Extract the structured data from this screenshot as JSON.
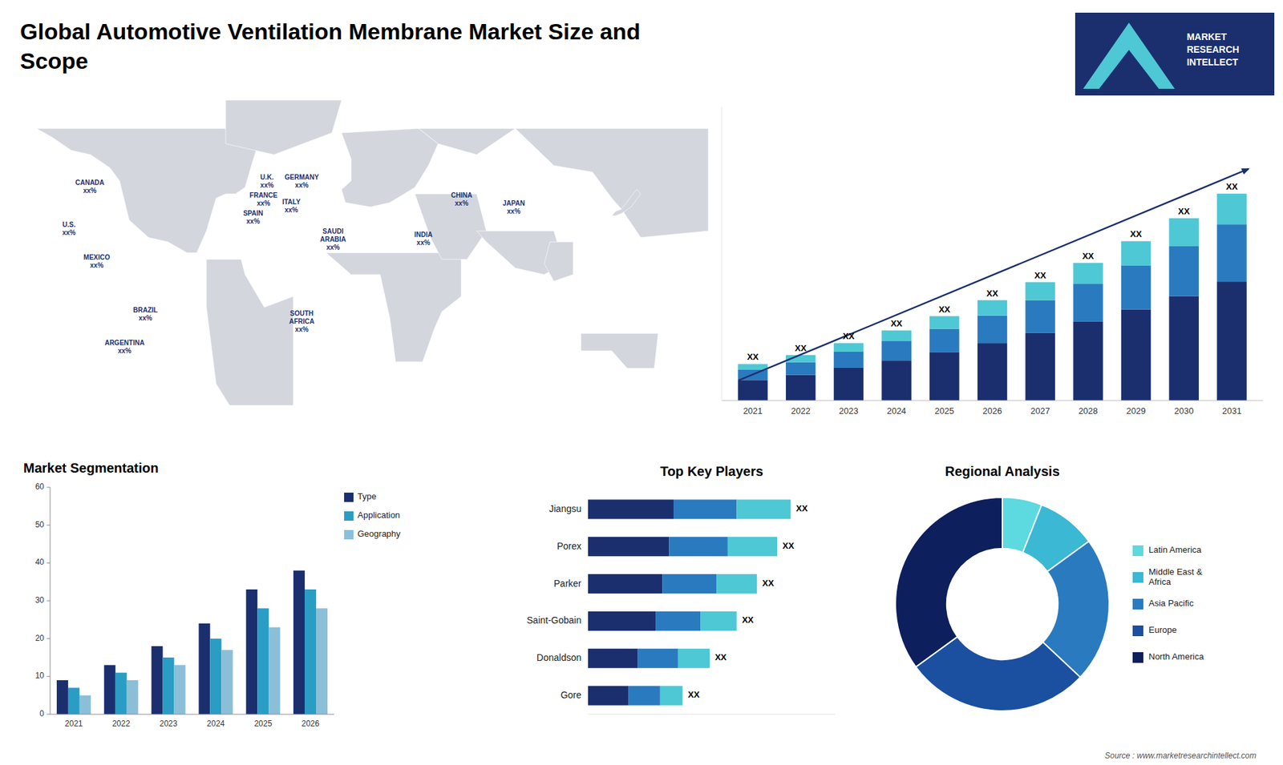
{
  "chart_data": [
    {
      "type": "map",
      "title": "Global Automotive Ventilation Membrane Market Size and\nScope",
      "annotations": [
        "CANADA\nxx%",
        "U.S.\nxx%",
        "MEXICO\nxx%",
        "BRAZIL\nxx%",
        "ARGENTINA\nxx%",
        "U.K.\nxx%",
        "FRANCE\nxx%",
        "SPAIN\nxx%",
        "GERMANY\nxx%",
        "ITALY\nxx%",
        "SAUDI\nARABIA\nxx%",
        "SOUTH\nAFRICA\nxx%",
        "CHINA\nxx%",
        "INDIA\nxx%",
        "JAPAN\nxx%",
        "MARKET\nRESEARCH\nINTELLECT",
        "Source : www.marketresearchintellect.com"
      ]
    },
    {
      "type": "bar",
      "stacked": true,
      "tick_labels": "x",
      "categories": [
        "2021",
        "2022",
        "2023",
        "2024",
        "2025",
        "2026",
        "2027",
        "2028",
        "2029",
        "2030",
        "2031"
      ],
      "series": [
        {
          "color": "#1b2f6e",
          "values": [
            1.0,
            1.25,
            1.6,
            1.95,
            2.35,
            2.8,
            3.3,
            3.85,
            4.45,
            5.1,
            5.8
          ]
        },
        {
          "color": "#2a7abf",
          "values": [
            0.5,
            0.62,
            0.78,
            0.95,
            1.15,
            1.35,
            1.6,
            1.85,
            2.15,
            2.45,
            2.8
          ]
        },
        {
          "color": "#4ec8d4",
          "values": [
            0.28,
            0.35,
            0.42,
            0.52,
            0.62,
            0.75,
            0.88,
            1.02,
            1.18,
            1.35,
            1.5
          ]
        }
      ],
      "ylim": [
        0,
        14.342
      ],
      "yticks": [],
      "grid": false,
      "annotations": [
        "XX",
        "XX",
        "XX",
        "XX",
        "XX",
        "XX",
        "XX",
        "XX",
        "XX",
        "XX",
        "XX"
      ]
    },
    {
      "type": "bar",
      "title": "Market Segmentation",
      "categories": [
        "2021",
        "2022",
        "2023",
        "2024",
        "2025",
        "2026"
      ],
      "series": [
        {
          "name": "Type",
          "color": "#1b2f6e",
          "values": [
            9,
            13,
            18,
            24,
            33,
            38
          ]
        },
        {
          "name": "Application",
          "color": "#2a9dc4",
          "values": [
            7,
            11,
            15,
            20,
            28,
            33
          ]
        },
        {
          "name": "Geography",
          "color": "#8bbfd8",
          "values": [
            5,
            9,
            13,
            17,
            23,
            28
          ]
        }
      ],
      "ylim": [
        0,
        60
      ],
      "yticks": [
        0,
        10,
        20,
        30,
        40,
        50,
        60
      ],
      "grid": false,
      "legend": "right"
    },
    {
      "type": "bar",
      "title": "Top Key Players",
      "orientation": "horizontal",
      "stacked": true,
      "tick_labels": "y",
      "categories": [
        "Jiangsu",
        "Porex",
        "Parker",
        "Saint-Gobain",
        "Donaldson",
        "Gore"
      ],
      "series": [
        {
          "color": "#1b2f6e",
          "values": [
            38,
            36,
            33,
            30,
            22,
            18
          ]
        },
        {
          "color": "#2a7abf",
          "values": [
            28,
            26,
            24,
            20,
            18,
            14
          ]
        },
        {
          "color": "#4ec8d4",
          "values": [
            24,
            22,
            18,
            16,
            14,
            10
          ]
        }
      ],
      "xlim": [
        0,
        109.8
      ],
      "xticks": [],
      "grid": false,
      "annotations": [
        "XX",
        "XX",
        "XX",
        "XX",
        "XX",
        "XX"
      ]
    },
    {
      "type": "donut",
      "title": "Regional Analysis",
      "categories": [
        "Latin America",
        "Middle East &\nAfrica",
        "Asia Pacific",
        "Europe",
        "North America"
      ],
      "values": [
        6,
        9,
        22,
        28,
        35
      ],
      "colors": [
        "#5dd9e0",
        "#3ab8d4",
        "#2a7abf",
        "#1b4fa0",
        "#0d1f5c"
      ],
      "legend": "right"
    }
  ]
}
